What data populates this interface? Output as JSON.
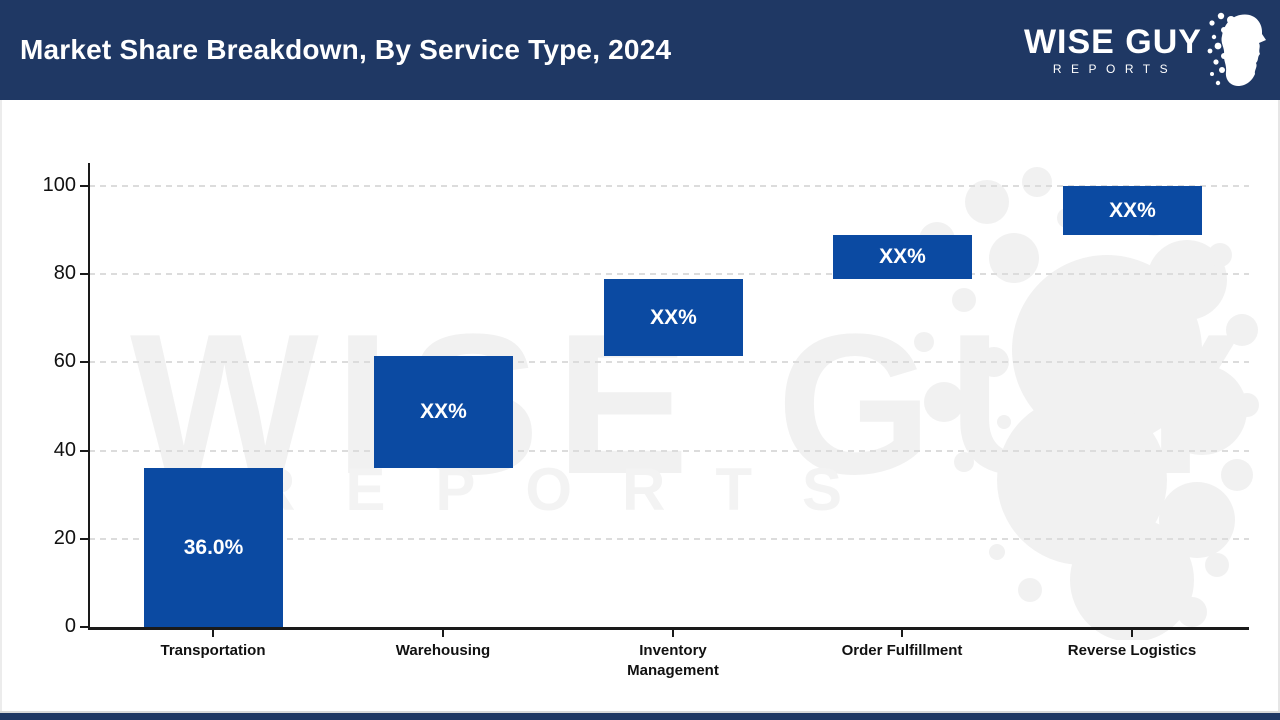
{
  "header": {
    "title": "Market Share Breakdown, By Service Type, 2024",
    "logo_line1": "WISE GUY",
    "logo_line2": "REPORTS",
    "bg_color": "#1f3864"
  },
  "watermark": {
    "line1": "WISE GUY",
    "line2": "REPORTS"
  },
  "chart_data": {
    "type": "bar",
    "subtype": "waterfall",
    "title": "Market Share Breakdown, By Service Type, 2024",
    "categories": [
      "Transportation",
      "Warehousing",
      "Inventory\nManagement",
      "Order Fulfillment",
      "Reverse Logistics"
    ],
    "series": [
      {
        "name": "Market share (%)",
        "segments": [
          {
            "category": "Transportation",
            "start": 0,
            "end": 36,
            "label": "36.0%"
          },
          {
            "category": "Warehousing",
            "start": 36,
            "end": 61.5,
            "label": "XX%"
          },
          {
            "category": "Inventory Management",
            "start": 61.5,
            "end": 79,
            "label": "XX%"
          },
          {
            "category": "Order Fulfillment",
            "start": 79,
            "end": 89,
            "label": "XX%"
          },
          {
            "category": "Reverse Logistics",
            "start": 89,
            "end": 100,
            "label": "XX%"
          }
        ]
      }
    ],
    "ylim": [
      0,
      100
    ],
    "yticks": [
      0,
      20,
      40,
      60,
      80,
      100
    ],
    "xlabel": "",
    "ylabel": "",
    "grid": "horizontal dashed",
    "legend": "none",
    "bar_color": "#0b4aa2",
    "bar_label_color": "#ffffff",
    "axis_color": "#1a1a1a"
  },
  "footer": {
    "bg_color": "#1f3864"
  }
}
